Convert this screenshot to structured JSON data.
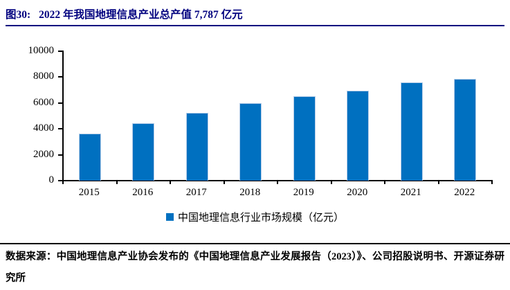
{
  "header": {
    "figure_label": "图30:",
    "title": "2022 年我国地理信息产业总产值 7,787 亿元",
    "accent_color": "#00007F"
  },
  "chart_data": {
    "type": "bar",
    "title": "2022 年我国地理信息产业总产值 7,787 亿元",
    "categories": [
      "2015",
      "2016",
      "2017",
      "2018",
      "2019",
      "2020",
      "2021",
      "2022"
    ],
    "values": [
      3600,
      4360,
      5180,
      5957,
      6476,
      6890,
      7524,
      7787
    ],
    "series_name": "中国地理信息行业市场规模（亿元）",
    "xlabel": "",
    "ylabel": "",
    "ylim": [
      0,
      10000
    ],
    "yticks": [
      0,
      2000,
      4000,
      6000,
      8000,
      10000
    ],
    "bar_color": "#0070C0",
    "bar_edge_color": "#B7CDE8",
    "grid": false,
    "legend_position": "bottom"
  },
  "footer": {
    "source_text": "数据来源：中国地理信息产业协会发布的《中国地理信息产业发展报告（2023）》、公司招股说明书、开源证券研究所"
  }
}
